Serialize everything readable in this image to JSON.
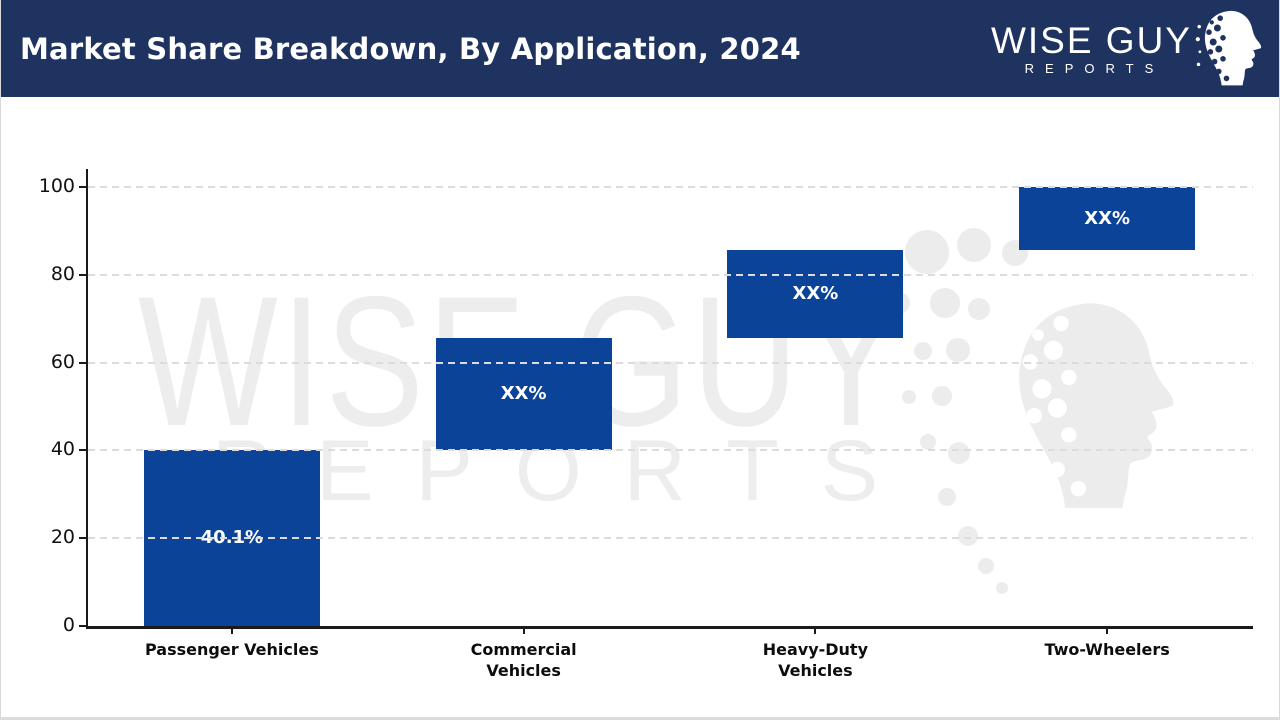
{
  "header": {
    "title": "Market Share Breakdown, By Application, 2024",
    "bg_color": "#1f3361",
    "brand": {
      "name": "WISE GUY",
      "subname": "REPORTS"
    }
  },
  "watermark": {
    "line1": "WISE GUY",
    "line2": "REPORTS"
  },
  "chart_data": {
    "type": "bar",
    "subtype": "waterfall",
    "title": "Market Share Breakdown, By Application, 2024",
    "categories": [
      "Passenger Vehicles",
      "Commercial\nVehicles",
      "Heavy-Duty\nVehicles",
      "Two-Wheelers"
    ],
    "segments": [
      {
        "category": "Passenger Vehicles",
        "label": "40.1%",
        "start": 0,
        "end": 40.1
      },
      {
        "category": "Commercial Vehicles",
        "label": "XX%",
        "start": 40.1,
        "end": 65.6
      },
      {
        "category": "Heavy-Duty Vehicles",
        "label": "XX%",
        "start": 65.6,
        "end": 85.7
      },
      {
        "category": "Two-Wheelers",
        "label": "XX%",
        "start": 85.7,
        "end": 100
      }
    ],
    "yticks": [
      0,
      20,
      40,
      60,
      80,
      100
    ],
    "ylim": [
      0,
      104
    ],
    "xlabel": "",
    "ylabel": "",
    "grid": "horizontal-dashed",
    "legend": "none",
    "bar_color": "#0b4399",
    "bar_label_color": "#ffffff"
  }
}
